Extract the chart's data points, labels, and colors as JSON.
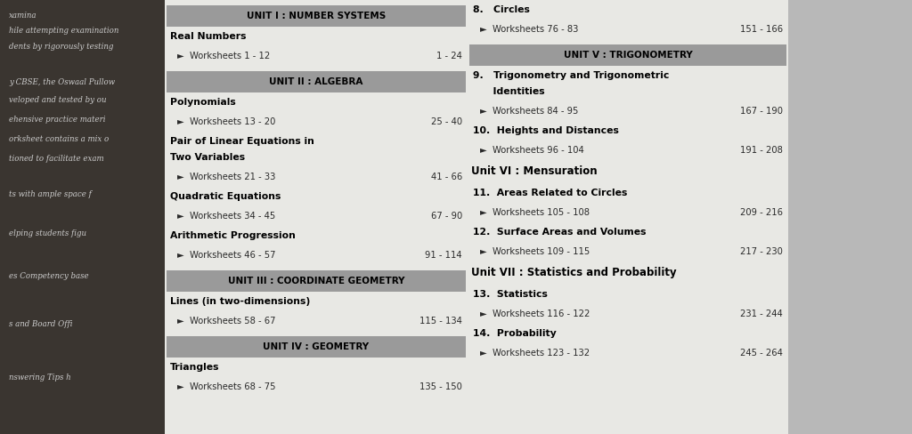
{
  "bg_color": "#b8b8b8",
  "left_dark_color": "#3a3530",
  "panel_color": "#e8e8e4",
  "header_bg": "#9a9a9a",
  "text_color": "#1a1a1a",
  "worksheet_color": "#2a2a2a",
  "left_col": [
    {
      "type": "header",
      "text": "UNIT I : NUMBER SYSTEMS"
    },
    {
      "type": "topic",
      "text": "Real Numbers"
    },
    {
      "type": "worksheet",
      "text": "►  Worksheets 1 - 12",
      "pages": "1 - 24"
    },
    {
      "type": "header",
      "text": "UNIT II : ALGEBRA"
    },
    {
      "type": "topic",
      "text": "Polynomials"
    },
    {
      "type": "worksheet",
      "text": "►  Worksheets 13 - 20",
      "pages": "25 - 40"
    },
    {
      "type": "topic2",
      "text": "Pair of Linear Equations in\nTwo Variables"
    },
    {
      "type": "worksheet",
      "text": "►  Worksheets 21 - 33",
      "pages": "41 - 66"
    },
    {
      "type": "topic",
      "text": "Quadratic Equations"
    },
    {
      "type": "worksheet",
      "text": "►  Worksheets 34 - 45",
      "pages": "67 - 90"
    },
    {
      "type": "topic",
      "text": "Arithmetic Progression"
    },
    {
      "type": "worksheet",
      "text": "►  Worksheets 46 - 57",
      "pages": "91 - 114"
    },
    {
      "type": "header",
      "text": "UNIT III : COORDINATE GEOMETRY"
    },
    {
      "type": "topic",
      "text": "Lines (in two-dimensions)"
    },
    {
      "type": "worksheet",
      "text": "►  Worksheets 58 - 67",
      "pages": "115 - 134"
    },
    {
      "type": "header",
      "text": "UNIT IV : GEOMETRY"
    },
    {
      "type": "topic",
      "text": "Triangles"
    },
    {
      "type": "worksheet",
      "text": "►  Worksheets 68 - 75",
      "pages": "135 - 150"
    }
  ],
  "right_col": [
    {
      "type": "topic",
      "text": "8.   Circles"
    },
    {
      "type": "worksheet",
      "text": "►  Worksheets 76 - 83",
      "pages": "151 - 166"
    },
    {
      "type": "header",
      "text": "UNIT V : TRIGONOMETRY"
    },
    {
      "type": "topic2",
      "text": "9.   Trigonometry and Trigonometric\n      Identities"
    },
    {
      "type": "worksheet",
      "text": "►  Worksheets 84 - 95",
      "pages": "167 - 190"
    },
    {
      "type": "topic",
      "text": "10.  Heights and Distances"
    },
    {
      "type": "worksheet",
      "text": "►  Worksheets 96 - 104",
      "pages": "191 - 208"
    },
    {
      "type": "unit_header",
      "text": "Unit VI : Mensuration"
    },
    {
      "type": "topic",
      "text": "11.  Areas Related to Circles"
    },
    {
      "type": "worksheet",
      "text": "►  Worksheets 105 - 108",
      "pages": "209 - 216"
    },
    {
      "type": "topic",
      "text": "12.  Surface Areas and Volumes"
    },
    {
      "type": "worksheet",
      "text": "►  Worksheets 109 - 115",
      "pages": "217 - 230"
    },
    {
      "type": "unit_header",
      "text": "Unit VII : Statistics and Probability"
    },
    {
      "type": "topic",
      "text": "13.  Statistics"
    },
    {
      "type": "worksheet",
      "text": "►  Worksheets 116 - 122",
      "pages": "231 - 244"
    },
    {
      "type": "topic",
      "text": "14.  Probability"
    },
    {
      "type": "worksheet",
      "text": "►  Worksheets 123 - 132",
      "pages": "245 - 264"
    }
  ],
  "left_text_lines": [
    "xamina",
    "hile attempting examination",
    "dents by rigorously testing",
    "",
    "y CBSE, the Oswaal Pullow",
    "veloped and tested by ou",
    "ehensive practice materi",
    "orksheet contains a mix o",
    "tioned to facilitate exam",
    "",
    "ts with ample space f",
    "",
    "elping students figu",
    "",
    "es Competency base",
    "",
    "s and Board Offi",
    "",
    "nswering Tips h"
  ],
  "figsize": [
    10.24,
    4.88
  ],
  "dpi": 100
}
